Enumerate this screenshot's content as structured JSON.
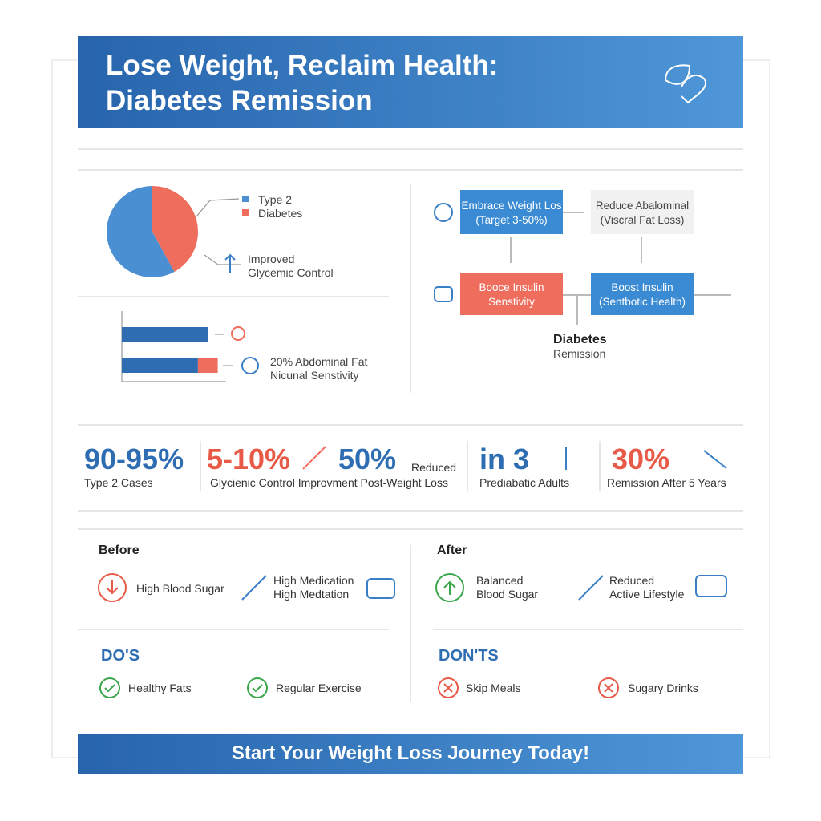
{
  "header": {
    "title": [
      "Lose Weight, Reclaim Health:",
      "Diabetes Remission"
    ]
  },
  "pie": {
    "values": [
      58,
      42
    ],
    "colors": [
      "#4a8fd2",
      "#ee6d5c"
    ],
    "legend": [
      "Type 2",
      "Diabetes"
    ],
    "note": [
      "Improved",
      "Glycemic Control"
    ]
  },
  "bars": {
    "xlim": [
      0,
      100
    ],
    "rows": [
      [
        83
      ],
      [
        73,
        19
      ]
    ],
    "colors": [
      "#2f6db3",
      "#ee6d5c"
    ],
    "label": [
      "20% Abdominal Fat",
      "Nicunal Senstivity"
    ]
  },
  "flow": {
    "nodes": [
      [
        "Embrace Weight Los",
        "(Target 3-50%)"
      ],
      [
        "Reduce Abalominal",
        "(Viscral Fat Loss)"
      ],
      [
        "Booce Insulin",
        "Senstivity"
      ],
      [
        "Boost Insulin",
        "(Sentbotic Health)"
      ]
    ],
    "outcome": [
      "Diabetes",
      "Remission"
    ]
  },
  "stats": [
    {
      "big": "90-95%",
      "caption": "Type 2 Cases"
    },
    {
      "big": "5-10%",
      "caption": "Glycienic Control Improvment Post-Weight Loss"
    },
    {
      "big": "50%",
      "side": "Reduced"
    },
    {
      "big": "in 3",
      "caption": "Prediabatic Adults"
    },
    {
      "big": "30%",
      "caption": "Remission After 5 Years"
    }
  ],
  "before": {
    "heading": "Before",
    "items": [
      [
        "High Blood Sugar"
      ],
      [
        "High Medication",
        "High Medtation"
      ]
    ]
  },
  "after": {
    "heading": "After",
    "items": [
      [
        "Balanced",
        "Blood Sugar"
      ],
      [
        "Reduced",
        "Active Lifestyle"
      ]
    ]
  },
  "dos": {
    "heading": "DO'S",
    "items": [
      "Healthy Fats",
      "Regular Exercise"
    ]
  },
  "donts": {
    "heading": "DON'TS",
    "items": [
      "Skip Meals",
      "Sugary Drinks"
    ]
  },
  "footer": "Start Your Weight Loss Journey Today!"
}
